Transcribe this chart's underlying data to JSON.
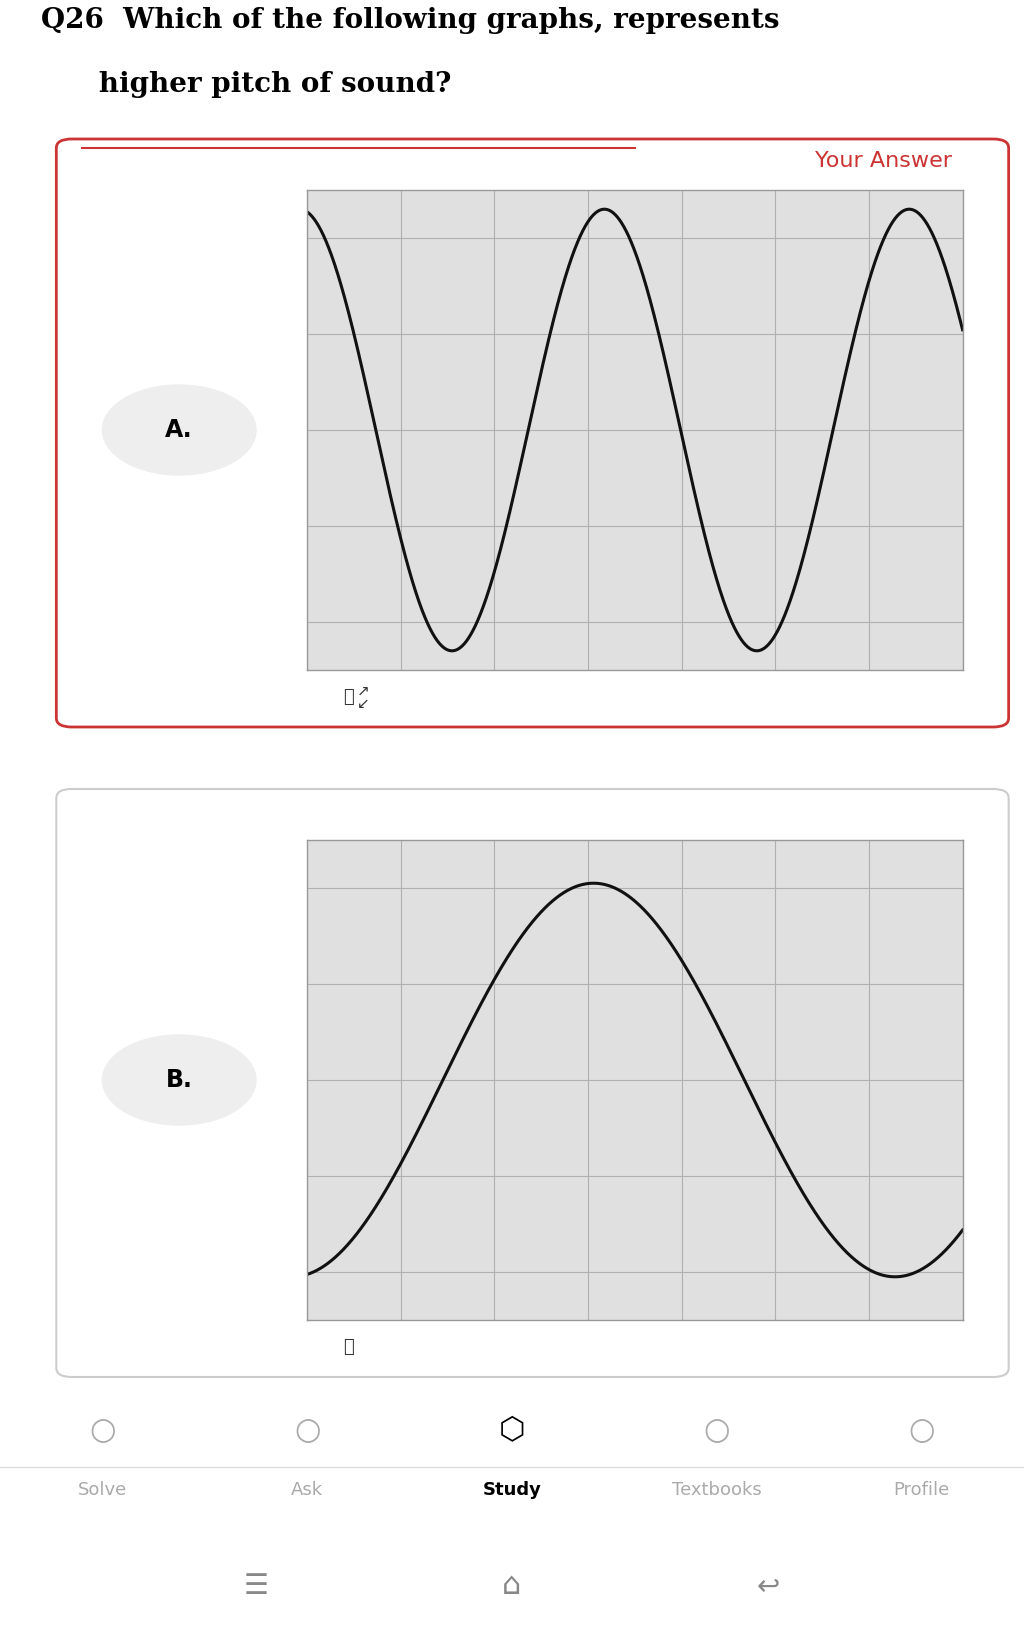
{
  "title_line1": "Q26  Which of the following graphs, represents",
  "title_line2": "      higher pitch of sound?",
  "title_fontsize": 20,
  "background_color": "#ffffff",
  "panel_A": {
    "label": "A.",
    "grid_rows": 5,
    "grid_cols": 7,
    "wave_color": "#111111",
    "wave_linewidth": 2.2,
    "grid_color": "#b0b0b0",
    "grid_bg": "#e0e0e0",
    "border_color": "#cc3333",
    "border_linewidth": 2.0
  },
  "panel_B": {
    "label": "B.",
    "grid_rows": 5,
    "grid_cols": 7,
    "wave_color": "#111111",
    "wave_linewidth": 2.2,
    "grid_color": "#b0b0b0",
    "grid_bg": "#e0e0e0",
    "border_color": "#cccccc",
    "border_linewidth": 1.5
  },
  "your_answer_text": "Your Answer",
  "your_answer_color": "#cc3333",
  "your_answer_fontsize": 16,
  "nav_items": [
    "Solve",
    "Ask",
    "Study",
    "Textbooks",
    "Profile"
  ],
  "nav_active": "Study",
  "nav_color_active": "#000000",
  "nav_color_inactive": "#aaaaaa",
  "nav_fontsize": 13
}
